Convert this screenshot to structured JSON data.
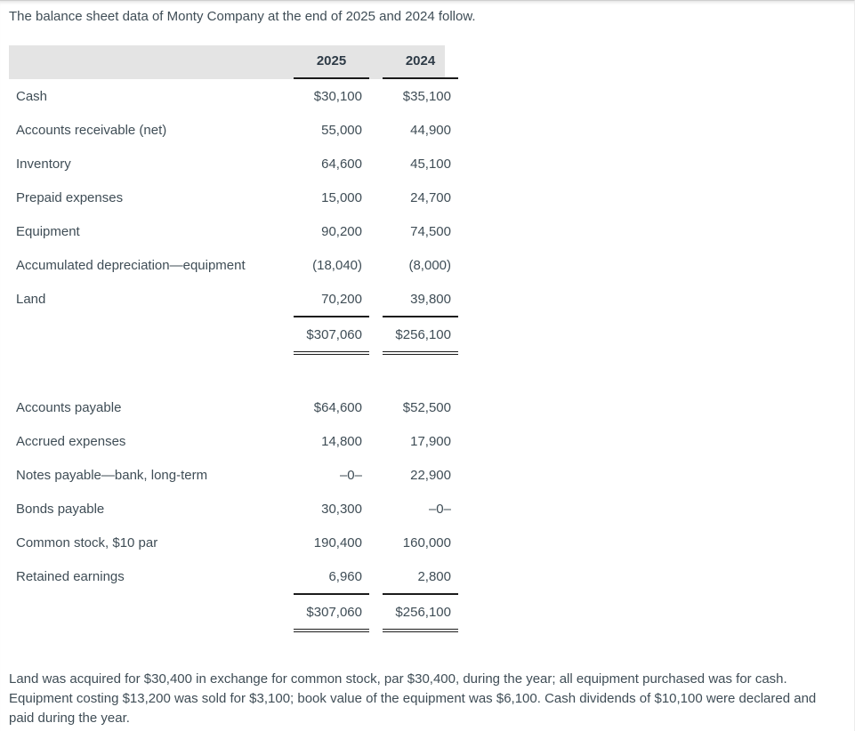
{
  "intro": "The balance sheet data of Monty Company at the end of 2025 and 2024 follow.",
  "table": {
    "col_headers": [
      "2025",
      "2024"
    ],
    "sections": [
      {
        "rows": [
          {
            "label": "Cash",
            "v2025": "$30,100",
            "v2024": "$35,100"
          },
          {
            "label": "Accounts receivable (net)",
            "v2025": "55,000",
            "v2024": "44,900"
          },
          {
            "label": "Inventory",
            "v2025": "64,600",
            "v2024": "45,100"
          },
          {
            "label": "Prepaid expenses",
            "v2025": "15,000",
            "v2024": "24,700"
          },
          {
            "label": "Equipment",
            "v2025": "90,200",
            "v2024": "74,500"
          },
          {
            "label": "Accumulated depreciation—equipment",
            "v2025": "(18,040)",
            "v2024": "(8,000)"
          },
          {
            "label": "Land",
            "v2025": "70,200",
            "v2024": "39,800"
          }
        ],
        "total": {
          "v2025": "$307,060",
          "v2024": "$256,100"
        }
      },
      {
        "rows": [
          {
            "label": "Accounts payable",
            "v2025": "$64,600",
            "v2024": "$52,500"
          },
          {
            "label": "Accrued expenses",
            "v2025": "14,800",
            "v2024": "17,900"
          },
          {
            "label": "Notes payable—bank, long-term",
            "v2025": "–0–",
            "v2024": "22,900"
          },
          {
            "label": "Bonds payable",
            "v2025": "30,300",
            "v2024": "–0–"
          },
          {
            "label": "Common stock, $10 par",
            "v2025": "190,400",
            "v2024": "160,000"
          },
          {
            "label": "Retained earnings",
            "v2025": "6,960",
            "v2024": "2,800"
          }
        ],
        "total": {
          "v2025": "$307,060",
          "v2024": "$256,100"
        }
      }
    ]
  },
  "footnote": "Land was acquired for $30,400 in exchange for common stock, par $30,400, during the year; all equipment purchased was for cash. Equipment costing $13,200 was sold for $3,100; book value of the equipment was $6,100. Cash dividends of $10,100 were declared and paid during the year.",
  "colors": {
    "text": "#3f4d56",
    "header_text": "#2e3b47",
    "header_band": "#e4e4e4",
    "rule": "#1a1a1a"
  }
}
